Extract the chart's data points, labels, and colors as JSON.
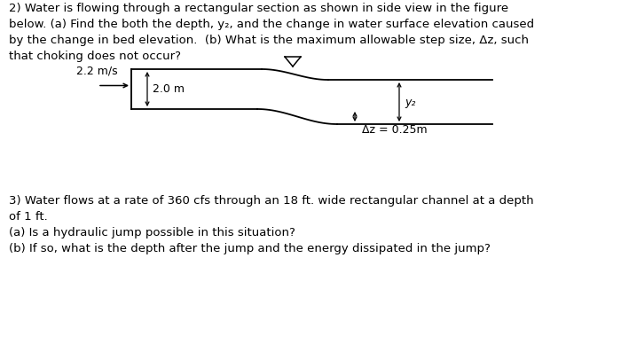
{
  "bg_color": "#ffffff",
  "text_color": "#000000",
  "line_color": "#000000",
  "font_size_body": 9.5,
  "font_size_label": 9.0,
  "header_text": "2) Water is flowing through a rectangular section as shown in side view in the figure\nbelow. (a) Find the both the depth, y₂, and the change in water surface elevation caused\nby the change in bed elevation.  (b) What is the maximum allowable step size, Δz, such\nthat choking does not occur?",
  "footer_text": "3) Water flows at a rate of 360 cfs through an 18 ft. wide rectangular channel at a depth\nof 1 ft.\n(a) Is a hydraulic jump possible in this situation?\n(b) If so, what is the depth after the jump and the energy dissipated in the jump?",
  "label_velocity": "2.2 m/s",
  "label_depth": "2.0 m",
  "label_y2": "y₂",
  "label_delta_z": "Δz = 0.25m"
}
